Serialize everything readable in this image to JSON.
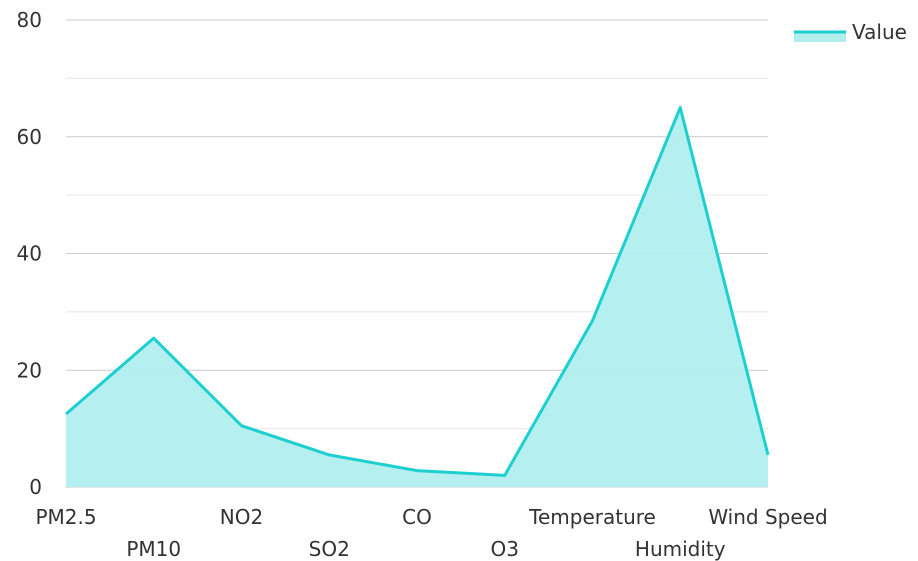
{
  "chart_data": {
    "type": "area",
    "categories": [
      "PM2.5",
      "PM10",
      "NO2",
      "SO2",
      "CO",
      "O3",
      "Temperature",
      "Humidity",
      "Wind Speed"
    ],
    "series": [
      {
        "name": "Value",
        "values": [
          12.5,
          25.5,
          10.5,
          5.5,
          2.8,
          2.0,
          28.5,
          65.0,
          5.5
        ]
      }
    ],
    "ylim": [
      0,
      80
    ],
    "yticks": [
      0,
      20,
      40,
      60,
      80
    ],
    "grid": true,
    "legend": "top-right",
    "colors": {
      "line": "#1ecfcf",
      "fill": "#b2eeee",
      "grid": "#cccccc",
      "minor_grid": "#e6e6e6"
    }
  }
}
